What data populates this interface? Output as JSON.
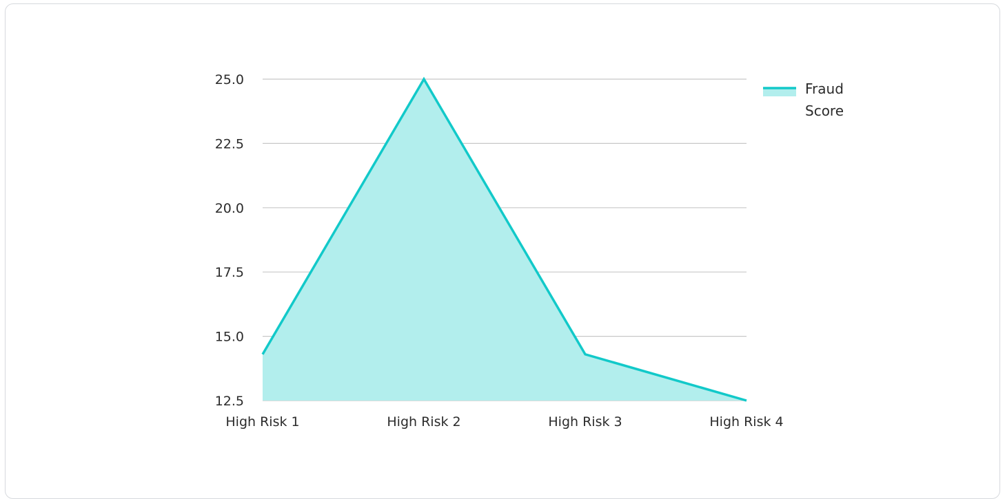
{
  "chart_data": {
    "type": "area",
    "categories": [
      "High Risk 1",
      "High Risk 2",
      "High Risk 3",
      "High Risk 4"
    ],
    "series": [
      {
        "name": "Fraud Score",
        "values": [
          14.3,
          25.0,
          14.3,
          12.5
        ]
      }
    ],
    "ylim": [
      12.5,
      25.0
    ],
    "yticks": [
      "12.5",
      "15.0",
      "17.5",
      "20.0",
      "22.5",
      "25.0"
    ],
    "ytick_values": [
      12.5,
      15.0,
      17.5,
      20.0,
      22.5,
      25.0
    ],
    "grid": true,
    "legend_position": "top-right",
    "colors": {
      "line": "#12c9c9",
      "fill": "#b2eeed",
      "grid": "#c8c8c8"
    }
  },
  "legend": {
    "line1": "Fraud",
    "line2": "Score"
  }
}
